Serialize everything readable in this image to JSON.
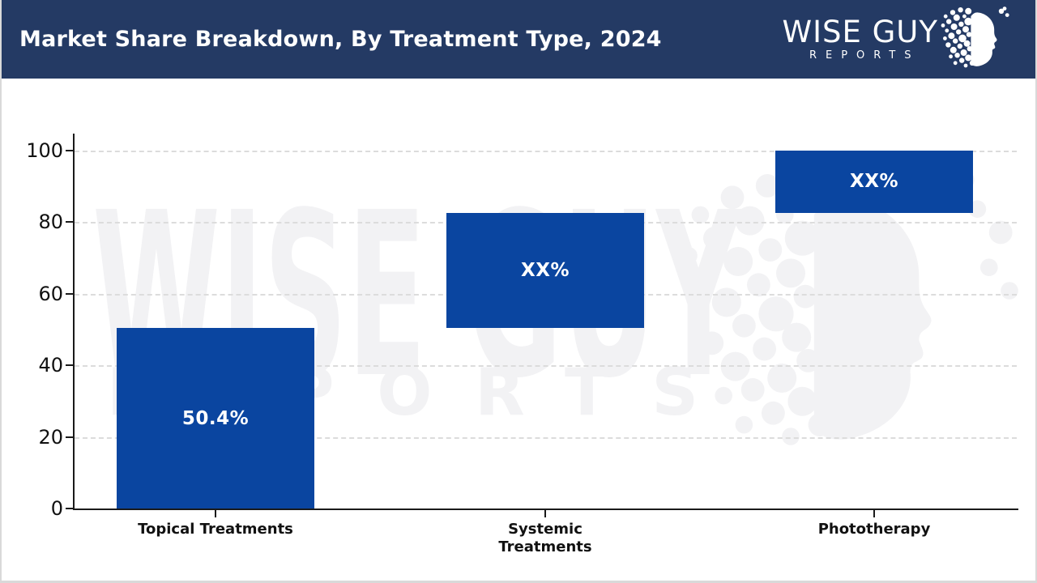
{
  "header": {
    "title": "Market Share Breakdown, By Treatment Type, 2024",
    "logo": {
      "wordmark": "WISE GUY",
      "subtext": "REPORTS"
    },
    "colors": {
      "background": "#243a64",
      "text": "#ffffff"
    }
  },
  "watermark": {
    "line1": "WISE GUY",
    "line2": "REPORTS"
  },
  "chart_data": {
    "type": "bar",
    "subtype": "floating-waterfall",
    "title": "Market Share Breakdown, By Treatment Type, 2024",
    "categories": [
      "Topical Treatments",
      "Systemic\nTreatments",
      "Phototherapy"
    ],
    "segments": [
      {
        "category": "Topical Treatments",
        "start": 0,
        "end": 50.4,
        "label": "50.4%"
      },
      {
        "category": "Systemic Treatments",
        "start": 50.4,
        "end": 82.6,
        "label": "XX%"
      },
      {
        "category": "Phototherapy",
        "start": 82.6,
        "end": 100,
        "label": "XX%"
      }
    ],
    "xlabel": "",
    "ylabel": "",
    "yticks": [
      0,
      20,
      40,
      60,
      80,
      100
    ],
    "ylim": [
      0,
      105
    ],
    "grid": "horizontal-dashed",
    "legend": "none",
    "colors": {
      "bar": "#0a45a0",
      "bar_label": "#ffffff",
      "axis": "#000000",
      "gridline": "#dcdcdc",
      "tick_label": "#111111",
      "watermark": "#f2f2f4"
    }
  }
}
